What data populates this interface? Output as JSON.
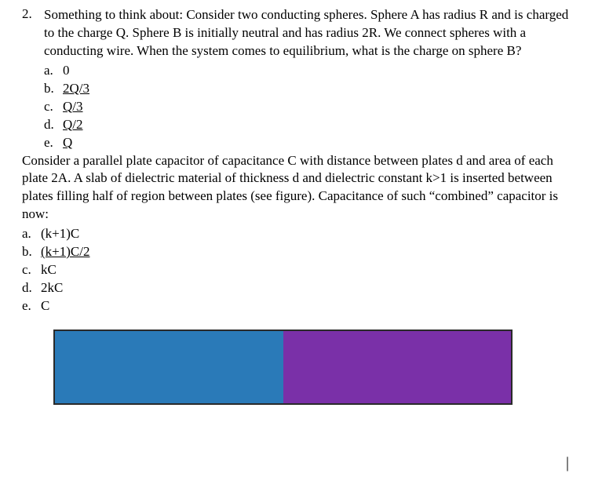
{
  "question1": {
    "number": "2.",
    "text": "Something to think about: Consider two conducting spheres. Sphere A has radius R and is charged to the charge Q. Sphere B is initially neutral and has radius 2R. We connect spheres with a conducting wire. When the system comes to equilibrium, what is the charge on sphere B?",
    "options": [
      {
        "letter": "a.",
        "text": "0",
        "underline": false
      },
      {
        "letter": "b.",
        "text": "2Q/3",
        "underline": true
      },
      {
        "letter": "c.",
        "text": "Q/3",
        "underline": true
      },
      {
        "letter": "d.",
        "text": "Q/2",
        "underline": true
      },
      {
        "letter": "e.",
        "text": "Q",
        "underline": true
      }
    ]
  },
  "question2": {
    "text": "Consider a parallel plate capacitor of capacitance C with distance between plates d and area of each plate 2A. A slab of dielectric material of thickness d and dielectric constant k>1 is inserted between plates filling half of region between plates (see figure). Capacitance of such “combined” capacitor is now:",
    "options": [
      {
        "letter": "a.",
        "text": "(k+1)C",
        "underline": false
      },
      {
        "letter": "b.",
        "text": "(k+1)C/2",
        "underline": true
      },
      {
        "letter": "c.",
        "text": "kC",
        "underline": false
      },
      {
        "letter": "d.",
        "text": "2kC",
        "underline": false
      },
      {
        "letter": "e.",
        "text": "C",
        "underline": false
      }
    ]
  },
  "figure": {
    "left_color": "#2a7ab8",
    "right_color": "#7a30a8",
    "border_color": "#2a2a2a"
  },
  "styling": {
    "font_family": "Times New Roman",
    "font_size_pt": 13,
    "text_color": "#000000",
    "background_color": "#ffffff"
  },
  "cursor": "|"
}
